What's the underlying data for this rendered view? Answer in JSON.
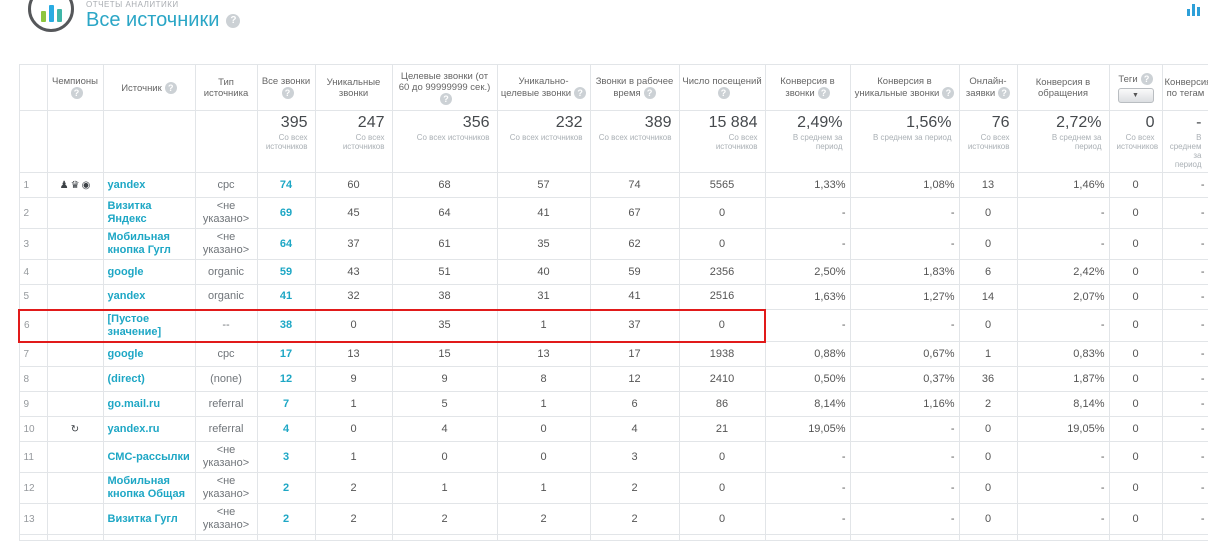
{
  "header": {
    "breadcrumb": "Отчеты аналитики",
    "title": "Все источники"
  },
  "icons": {
    "help_glyph": "?",
    "caret_down": "▼"
  },
  "columns": [
    {
      "label": ""
    },
    {
      "label": "Чемпионы"
    },
    {
      "label": "Источник"
    },
    {
      "label": "Тип источника"
    },
    {
      "label": "Все звонки"
    },
    {
      "label": "Уникальные звонки"
    },
    {
      "label": "Целевые звонки (от 60 до 99999999 сек.)"
    },
    {
      "label": "Уникально-целевые звонки"
    },
    {
      "label": "Звонки в рабочее время"
    },
    {
      "label": "Число посещений"
    },
    {
      "label": "Конверсия в звонки"
    },
    {
      "label": "Конверсия в уникальные звонки"
    },
    {
      "label": "Онлайн-заявки"
    },
    {
      "label": "Конверсия в обращения"
    },
    {
      "label": "Теги"
    },
    {
      "label": "Конверсия по тегам"
    }
  ],
  "summary": {
    "all_calls": {
      "value": "395",
      "caption": "Со всех источников"
    },
    "unique_calls": {
      "value": "247",
      "caption": "Со всех источников"
    },
    "target_calls": {
      "value": "356",
      "caption": "Со всех источников"
    },
    "unique_target_calls": {
      "value": "232",
      "caption": "Со всех источников"
    },
    "work_time_calls": {
      "value": "389",
      "caption": "Со всех источников"
    },
    "visits": {
      "value": "15 884",
      "caption": "Со всех источников"
    },
    "conv_calls": {
      "value": "2,49%",
      "caption": "В среднем за период"
    },
    "conv_unique_calls": {
      "value": "1,56%",
      "caption": "В среднем за период"
    },
    "online_leads": {
      "value": "76",
      "caption": "Со всех источников"
    },
    "conv_appeals": {
      "value": "2,72%",
      "caption": "В среднем за период"
    },
    "tags": {
      "value": "0",
      "caption": "Со всех источников"
    },
    "conv_tags": {
      "value": "-",
      "caption": "В среднем за период"
    }
  },
  "rows": [
    {
      "num": "1",
      "champions": [
        {
          "name": "champion-bell-icon",
          "glyph": "♟"
        },
        {
          "name": "champion-crown-icon",
          "glyph": "♛"
        },
        {
          "name": "champion-medal-icon",
          "glyph": "◉"
        }
      ],
      "source": "yandex",
      "type": "cpc",
      "values": [
        "74",
        "60",
        "68",
        "57",
        "74",
        "5565",
        "1,33%",
        "1,08%",
        "13",
        "1,46%",
        "0",
        "-"
      ]
    },
    {
      "num": "2",
      "champions": [],
      "source": "Визитка Яндекс",
      "type": "<не указано>",
      "values": [
        "69",
        "45",
        "64",
        "41",
        "67",
        "0",
        "-",
        "-",
        "0",
        "-",
        "0",
        "-"
      ]
    },
    {
      "num": "3",
      "champions": [],
      "source": "Мобильная кнопка Гугл",
      "type": "<не указано>",
      "values": [
        "64",
        "37",
        "61",
        "35",
        "62",
        "0",
        "-",
        "-",
        "0",
        "-",
        "0",
        "-"
      ]
    },
    {
      "num": "4",
      "champions": [],
      "source": "google",
      "type": "organic",
      "values": [
        "59",
        "43",
        "51",
        "40",
        "59",
        "2356",
        "2,50%",
        "1,83%",
        "6",
        "2,42%",
        "0",
        "-"
      ]
    },
    {
      "num": "5",
      "champions": [],
      "source": "yandex",
      "type": "organic",
      "values": [
        "41",
        "32",
        "38",
        "31",
        "41",
        "2516",
        "1,63%",
        "1,27%",
        "14",
        "2,07%",
        "0",
        "-"
      ]
    },
    {
      "num": "6",
      "champions": [],
      "source": "[Пустое значение]",
      "type": "--",
      "highlight": true,
      "values": [
        "38",
        "0",
        "35",
        "1",
        "37",
        "0",
        "-",
        "-",
        "0",
        "-",
        "0",
        "-"
      ]
    },
    {
      "num": "7",
      "champions": [],
      "source": "google",
      "type": "cpc",
      "values": [
        "17",
        "13",
        "15",
        "13",
        "17",
        "1938",
        "0,88%",
        "0,67%",
        "1",
        "0,83%",
        "0",
        "-"
      ]
    },
    {
      "num": "8",
      "champions": [],
      "source": "(direct)",
      "type": "(none)",
      "values": [
        "12",
        "9",
        "9",
        "8",
        "12",
        "2410",
        "0,50%",
        "0,37%",
        "36",
        "1,87%",
        "0",
        "-"
      ]
    },
    {
      "num": "9",
      "champions": [],
      "source": "go.mail.ru",
      "type": "referral",
      "values": [
        "7",
        "1",
        "5",
        "1",
        "6",
        "86",
        "8,14%",
        "1,16%",
        "2",
        "8,14%",
        "0",
        "-"
      ]
    },
    {
      "num": "10",
      "champions": [
        {
          "name": "sync-icon",
          "glyph": "↻",
          "interactable": true
        }
      ],
      "source": "yandex.ru",
      "type": "referral",
      "values": [
        "4",
        "0",
        "4",
        "0",
        "4",
        "21",
        "19,05%",
        "-",
        "0",
        "19,05%",
        "0",
        "-"
      ]
    },
    {
      "num": "11",
      "champions": [],
      "source": "СМС-рассылки",
      "type": "<не указано>",
      "values": [
        "3",
        "1",
        "0",
        "0",
        "3",
        "0",
        "-",
        "-",
        "0",
        "-",
        "0",
        "-"
      ]
    },
    {
      "num": "12",
      "champions": [],
      "source": "Мобильная кнопка Общая",
      "type": "<не указано>",
      "values": [
        "2",
        "2",
        "1",
        "1",
        "2",
        "0",
        "-",
        "-",
        "0",
        "-",
        "0",
        "-"
      ]
    },
    {
      "num": "13",
      "champions": [],
      "source": "Визитка Гугл",
      "type": "<не указано>",
      "values": [
        "2",
        "2",
        "2",
        "2",
        "2",
        "0",
        "-",
        "-",
        "0",
        "-",
        "0",
        "-"
      ]
    }
  ]
}
